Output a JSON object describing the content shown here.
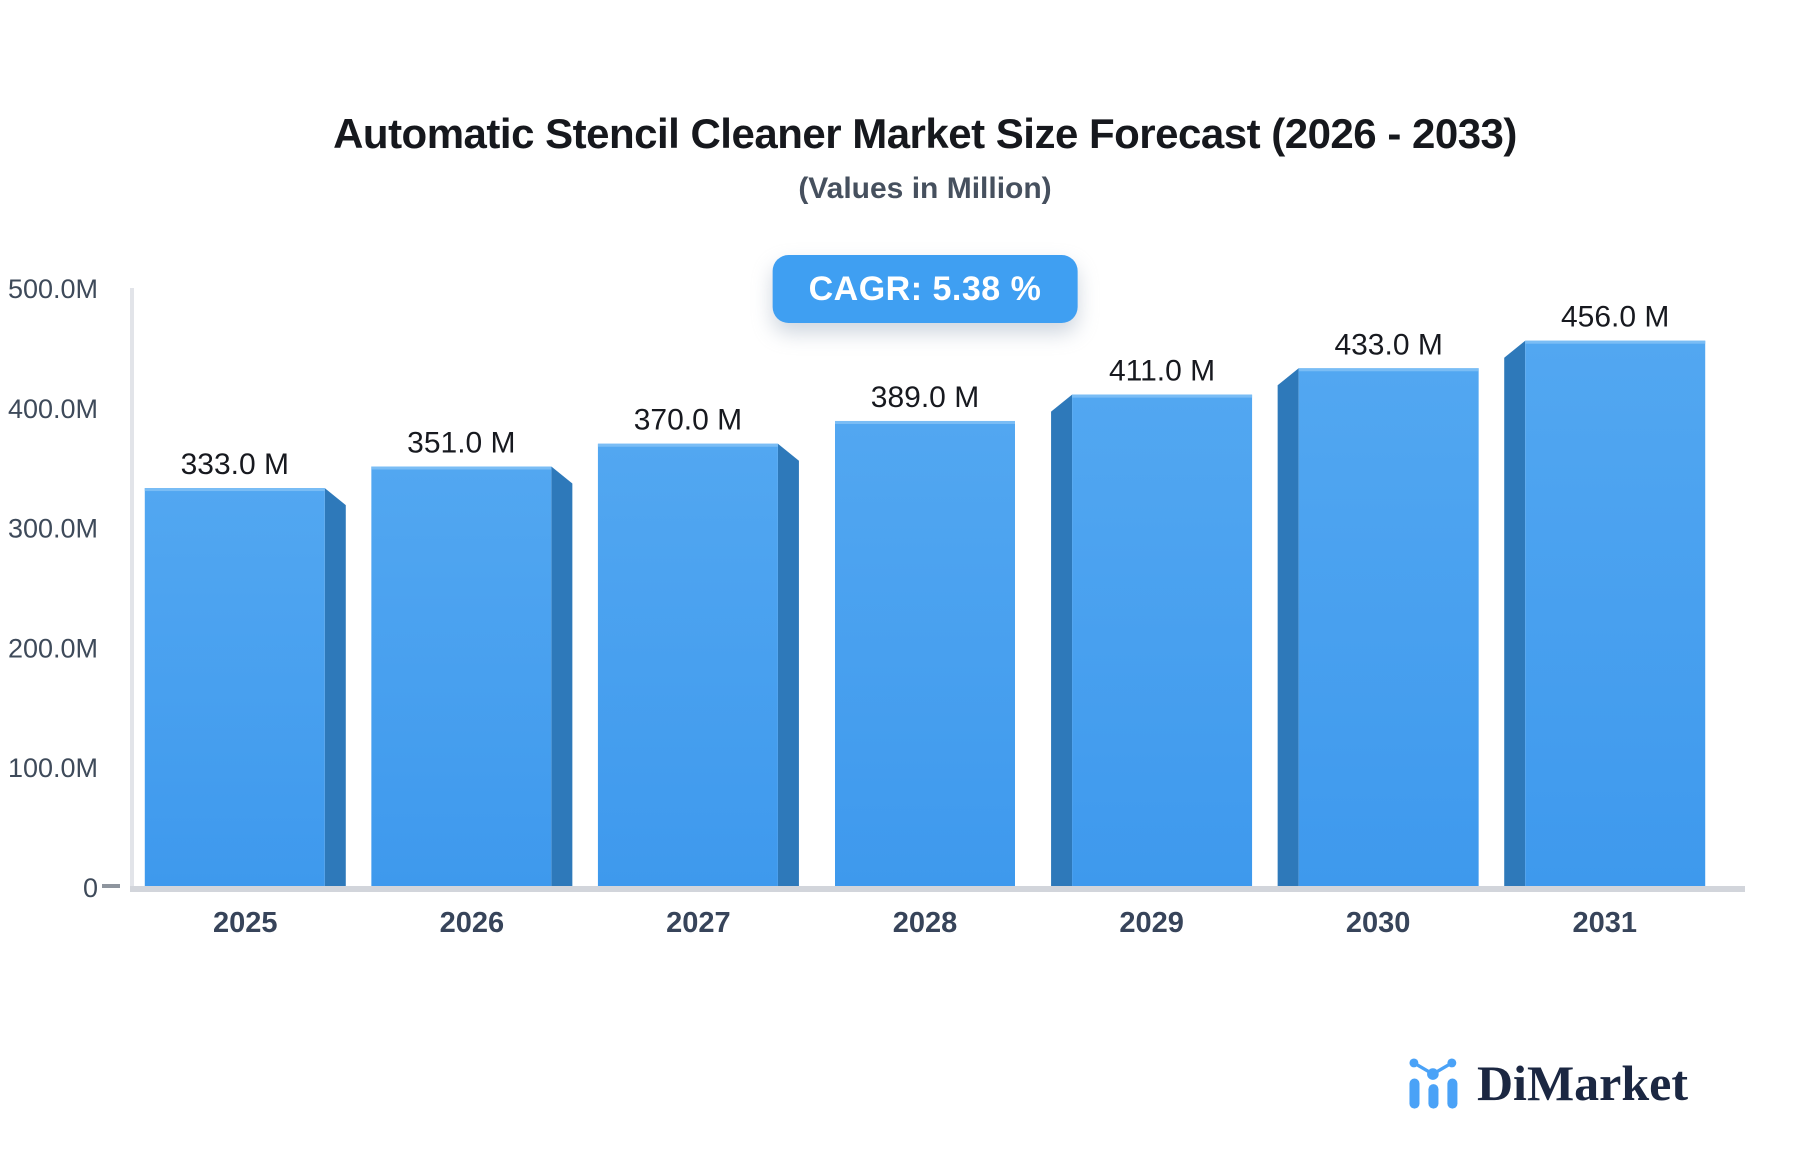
{
  "header": {
    "title": "Automatic Stencil Cleaner Market Size Forecast (2026 - 2033)",
    "subtitle": "(Values in Million)"
  },
  "badge": {
    "label": "CAGR: 5.38 %"
  },
  "chart_data": {
    "type": "bar",
    "title": "Automatic Stencil Cleaner Market Size Forecast (2026 - 2033)",
    "subtitle": "(Values in Million)",
    "unit": "Million",
    "cagr_percent": 5.38,
    "categories": [
      "2025",
      "2026",
      "2027",
      "2028",
      "2029",
      "2030",
      "2031"
    ],
    "values": [
      333,
      351,
      370,
      389,
      411,
      433,
      456
    ],
    "value_labels": [
      "333.0 M",
      "351.0 M",
      "370.0 M",
      "389.0 M",
      "411.0 M",
      "433.0 M",
      "456.0 M"
    ],
    "ylim": [
      0,
      500
    ],
    "y_ticks": [
      {
        "label": "500.0M",
        "value": 500
      },
      {
        "label": "400.0M",
        "value": 400
      },
      {
        "label": "300.0M",
        "value": 300
      },
      {
        "label": "200.0M",
        "value": 200
      },
      {
        "label": "100.0M",
        "value": 100
      },
      {
        "label": "0",
        "value": 0
      }
    ],
    "grid": false,
    "legend": "none",
    "style": "3d-perspective-bars"
  },
  "colors": {
    "bar_front_top": "#52a7f1",
    "bar_front_bottom": "#3e99ed",
    "bar_top_edge": "#7abdf5",
    "bar_side": "#2e79ba",
    "badge_bg": "#3f9ff2",
    "badge_text": "#ffffff",
    "title": "#16181d",
    "subtitle": "#46505e",
    "value_label": "#17191f",
    "axis_label": "#3e4a5a",
    "x_label": "#37445a",
    "axis_line": "#e2e4e9",
    "baseline": "#d2d5db",
    "tick": "#8e959e",
    "logo_blue": "#4aa2f7",
    "logo_text": "#1b2742"
  },
  "logo": {
    "text": "DiMarket"
  }
}
